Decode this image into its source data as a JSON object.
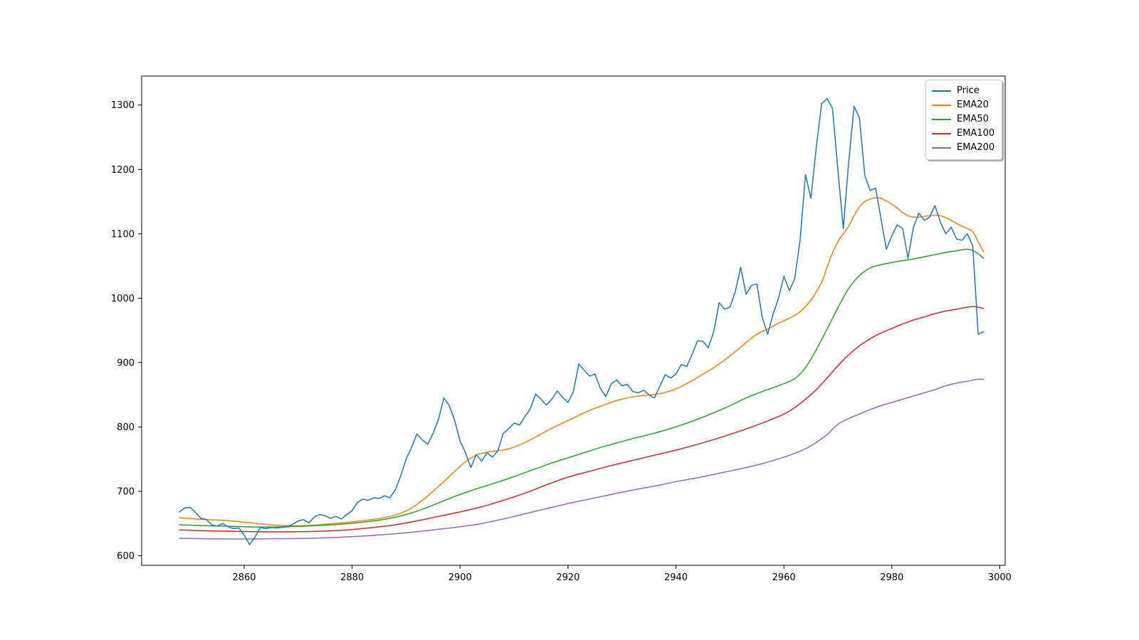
{
  "chart_data": {
    "type": "line",
    "title": "",
    "xlabel": "",
    "ylabel": "",
    "grid": false,
    "xlim": [
      2841,
      3001
    ],
    "ylim": [
      585,
      1345
    ],
    "xticks": [
      2860,
      2880,
      2900,
      2920,
      2940,
      2960,
      2980,
      3000
    ],
    "yticks": [
      600,
      700,
      800,
      900,
      1000,
      1100,
      1200,
      1300
    ],
    "legend": {
      "position": "upper right",
      "entries": [
        "Price",
        "EMA20",
        "EMA50",
        "EMA100",
        "EMA200"
      ]
    },
    "price": {
      "name": "Price",
      "color": "#1f77b4",
      "x_start": 2848,
      "x_step": 1,
      "values": [
        668,
        674,
        675,
        667,
        658,
        656,
        648,
        646,
        650,
        645,
        642,
        643,
        632,
        617,
        629,
        644,
        642,
        644,
        643,
        644,
        645,
        649,
        654,
        656,
        651,
        660,
        664,
        662,
        658,
        661,
        657,
        664,
        670,
        683,
        688,
        686,
        690,
        689,
        693,
        690,
        702,
        724,
        750,
        768,
        789,
        780,
        773,
        790,
        812,
        845,
        833,
        810,
        778,
        760,
        737,
        757,
        747,
        760,
        753,
        763,
        790,
        797,
        806,
        803,
        816,
        828,
        851,
        843,
        834,
        843,
        856,
        846,
        838,
        855,
        898,
        888,
        879,
        882,
        860,
        847,
        867,
        873,
        864,
        866,
        855,
        853,
        857,
        850,
        845,
        863,
        881,
        876,
        882,
        897,
        894,
        913,
        934,
        933,
        923,
        948,
        993,
        983,
        986,
        1010,
        1048,
        1006,
        1020,
        1022,
        970,
        944,
        975,
        1000,
        1034,
        1012,
        1030,
        1090,
        1192,
        1155,
        1235,
        1302,
        1310,
        1295,
        1200,
        1108,
        1210,
        1298,
        1280,
        1190,
        1167,
        1171,
        1123,
        1076,
        1097,
        1114,
        1108,
        1062,
        1110,
        1132,
        1121,
        1126,
        1144,
        1118,
        1100,
        1110,
        1092,
        1090,
        1100,
        1081,
        944,
        948
      ]
    },
    "emas": [
      {
        "name": "EMA20",
        "color": "#ff7f0e",
        "points": [
          [
            2848,
            659
          ],
          [
            2852,
            656.5
          ],
          [
            2856,
            655
          ],
          [
            2860,
            652
          ],
          [
            2864,
            648.5
          ],
          [
            2868,
            646.5
          ],
          [
            2872,
            647
          ],
          [
            2876,
            649.5
          ],
          [
            2880,
            652.5
          ],
          [
            2884,
            656.5
          ],
          [
            2887,
            661
          ],
          [
            2889,
            666
          ],
          [
            2891,
            674
          ],
          [
            2893,
            686
          ],
          [
            2895,
            700
          ],
          [
            2897,
            715
          ],
          [
            2899,
            731
          ],
          [
            2901,
            746
          ],
          [
            2903,
            756
          ],
          [
            2905,
            761
          ],
          [
            2907,
            763
          ],
          [
            2909,
            766
          ],
          [
            2911,
            772
          ],
          [
            2913,
            780
          ],
          [
            2915,
            789
          ],
          [
            2917,
            798
          ],
          [
            2919,
            806
          ],
          [
            2921,
            814
          ],
          [
            2923,
            822
          ],
          [
            2925,
            829
          ],
          [
            2927,
            835
          ],
          [
            2929,
            841
          ],
          [
            2931,
            845
          ],
          [
            2933,
            848
          ],
          [
            2935,
            849.5
          ],
          [
            2937,
            851.5
          ],
          [
            2939,
            856
          ],
          [
            2941,
            863
          ],
          [
            2943,
            872
          ],
          [
            2945,
            882
          ],
          [
            2947,
            892
          ],
          [
            2949,
            904
          ],
          [
            2951,
            917
          ],
          [
            2953,
            931
          ],
          [
            2955,
            944
          ],
          [
            2957,
            952
          ],
          [
            2959,
            961
          ],
          [
            2961,
            969
          ],
          [
            2963,
            979
          ],
          [
            2965,
            997
          ],
          [
            2967,
            1025
          ],
          [
            2968,
            1048
          ],
          [
            2969,
            1070
          ],
          [
            2970,
            1088
          ],
          [
            2971,
            1100
          ],
          [
            2972,
            1112
          ],
          [
            2973,
            1128
          ],
          [
            2974,
            1142
          ],
          [
            2975,
            1150
          ],
          [
            2976,
            1154
          ],
          [
            2977,
            1156
          ],
          [
            2978,
            1155
          ],
          [
            2979,
            1151
          ],
          [
            2980,
            1146
          ],
          [
            2981,
            1140
          ],
          [
            2982,
            1133
          ],
          [
            2983,
            1128
          ],
          [
            2984,
            1126
          ],
          [
            2985,
            1126
          ],
          [
            2986,
            1127
          ],
          [
            2987,
            1128
          ],
          [
            2988,
            1129
          ],
          [
            2989,
            1128
          ],
          [
            2990,
            1125
          ],
          [
            2991,
            1121
          ],
          [
            2992,
            1116
          ],
          [
            2993,
            1112
          ],
          [
            2994,
            1108
          ],
          [
            2995,
            1103
          ],
          [
            2996,
            1088
          ],
          [
            2997,
            1072
          ]
        ]
      },
      {
        "name": "EMA50",
        "color": "#2ca02c",
        "points": [
          [
            2848,
            648
          ],
          [
            2853,
            646.5
          ],
          [
            2858,
            645.5
          ],
          [
            2863,
            644.5
          ],
          [
            2868,
            645
          ],
          [
            2873,
            646.5
          ],
          [
            2878,
            649
          ],
          [
            2883,
            653
          ],
          [
            2887,
            658
          ],
          [
            2890,
            664
          ],
          [
            2893,
            672
          ],
          [
            2896,
            682
          ],
          [
            2899,
            692
          ],
          [
            2902,
            701
          ],
          [
            2905,
            709
          ],
          [
            2908,
            717
          ],
          [
            2911,
            726
          ],
          [
            2914,
            735
          ],
          [
            2917,
            744
          ],
          [
            2920,
            752
          ],
          [
            2923,
            760
          ],
          [
            2926,
            768
          ],
          [
            2929,
            775
          ],
          [
            2932,
            782
          ],
          [
            2935,
            788
          ],
          [
            2938,
            795
          ],
          [
            2941,
            803
          ],
          [
            2944,
            812
          ],
          [
            2947,
            822
          ],
          [
            2950,
            833
          ],
          [
            2953,
            845
          ],
          [
            2956,
            855
          ],
          [
            2959,
            864
          ],
          [
            2962,
            875
          ],
          [
            2964,
            892
          ],
          [
            2966,
            920
          ],
          [
            2968,
            952
          ],
          [
            2970,
            985
          ],
          [
            2972,
            1015
          ],
          [
            2974,
            1035
          ],
          [
            2976,
            1047
          ],
          [
            2978,
            1052
          ],
          [
            2981,
            1057
          ],
          [
            2984,
            1061
          ],
          [
            2987,
            1066
          ],
          [
            2990,
            1071
          ],
          [
            2993,
            1075
          ],
          [
            2994,
            1076
          ],
          [
            2995,
            1074
          ],
          [
            2996,
            1069
          ],
          [
            2997,
            1062
          ]
        ]
      },
      {
        "name": "EMA100",
        "color": "#d62728",
        "points": [
          [
            2848,
            640
          ],
          [
            2854,
            638.5
          ],
          [
            2860,
            637.5
          ],
          [
            2866,
            637
          ],
          [
            2872,
            637.5
          ],
          [
            2878,
            639.5
          ],
          [
            2883,
            643
          ],
          [
            2888,
            648
          ],
          [
            2892,
            654
          ],
          [
            2896,
            661
          ],
          [
            2900,
            668
          ],
          [
            2904,
            676
          ],
          [
            2908,
            686
          ],
          [
            2912,
            697
          ],
          [
            2916,
            710
          ],
          [
            2920,
            722
          ],
          [
            2924,
            731
          ],
          [
            2928,
            740
          ],
          [
            2932,
            748
          ],
          [
            2936,
            756
          ],
          [
            2940,
            764
          ],
          [
            2944,
            773
          ],
          [
            2948,
            783
          ],
          [
            2952,
            794
          ],
          [
            2956,
            806
          ],
          [
            2960,
            820
          ],
          [
            2962,
            830
          ],
          [
            2964,
            843
          ],
          [
            2966,
            858
          ],
          [
            2968,
            876
          ],
          [
            2970,
            895
          ],
          [
            2972,
            912
          ],
          [
            2974,
            926
          ],
          [
            2976,
            937
          ],
          [
            2978,
            946
          ],
          [
            2980,
            953
          ],
          [
            2982,
            960
          ],
          [
            2984,
            966
          ],
          [
            2986,
            971
          ],
          [
            2988,
            976
          ],
          [
            2990,
            980
          ],
          [
            2992,
            983
          ],
          [
            2994,
            986
          ],
          [
            2995,
            987
          ],
          [
            2996,
            986
          ],
          [
            2997,
            984
          ]
        ]
      },
      {
        "name": "EMA200",
        "color": "#9467bd",
        "points": [
          [
            2848,
            627
          ],
          [
            2855,
            626
          ],
          [
            2862,
            626
          ],
          [
            2869,
            626.5
          ],
          [
            2876,
            628
          ],
          [
            2883,
            631
          ],
          [
            2890,
            635.5
          ],
          [
            2896,
            641
          ],
          [
            2900,
            645
          ],
          [
            2904,
            650
          ],
          [
            2908,
            657
          ],
          [
            2912,
            665
          ],
          [
            2916,
            673
          ],
          [
            2920,
            681
          ],
          [
            2924,
            688
          ],
          [
            2928,
            695
          ],
          [
            2932,
            702
          ],
          [
            2936,
            708
          ],
          [
            2940,
            715
          ],
          [
            2944,
            721
          ],
          [
            2948,
            728
          ],
          [
            2952,
            735
          ],
          [
            2956,
            743
          ],
          [
            2960,
            753
          ],
          [
            2962,
            759
          ],
          [
            2964,
            766
          ],
          [
            2966,
            776
          ],
          [
            2968,
            788
          ],
          [
            2970,
            804
          ],
          [
            2972,
            813
          ],
          [
            2974,
            820
          ],
          [
            2976,
            827
          ],
          [
            2978,
            833
          ],
          [
            2980,
            838
          ],
          [
            2982,
            843
          ],
          [
            2984,
            848
          ],
          [
            2986,
            853
          ],
          [
            2988,
            858
          ],
          [
            2990,
            864
          ],
          [
            2992,
            868
          ],
          [
            2994,
            871
          ],
          [
            2996,
            874
          ],
          [
            2997,
            874
          ]
        ]
      }
    ]
  }
}
